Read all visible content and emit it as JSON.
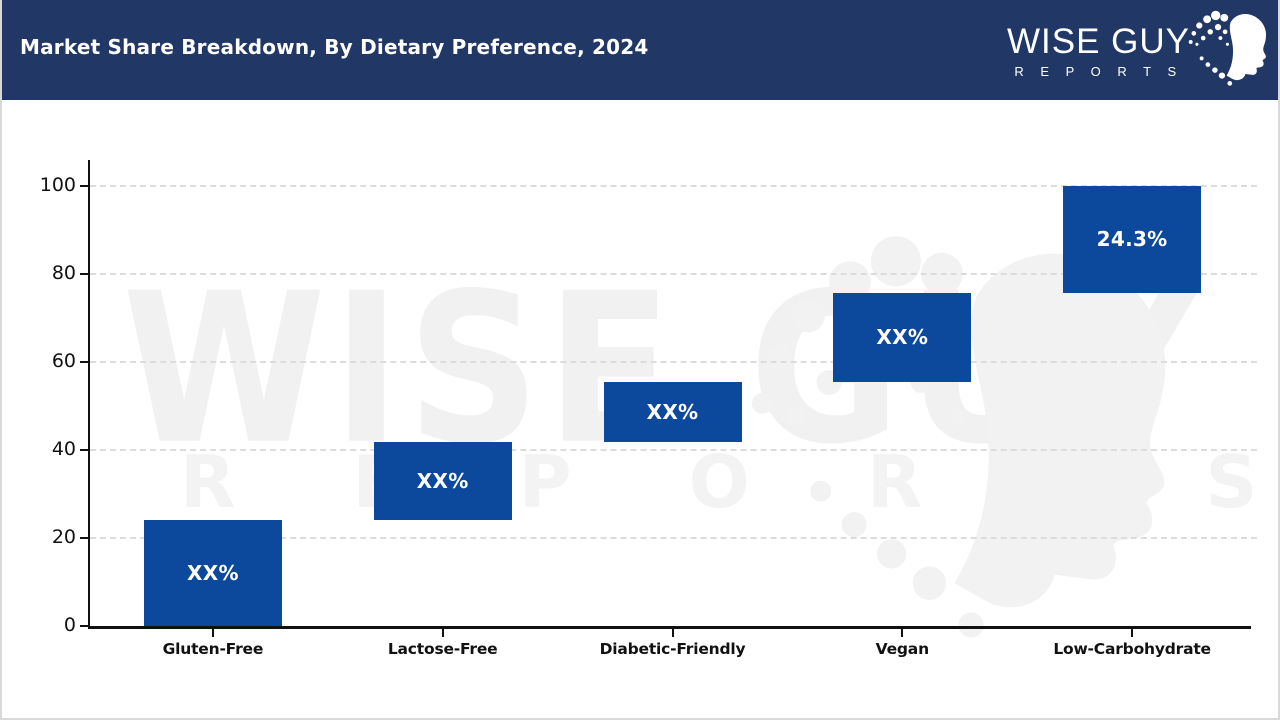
{
  "header": {
    "title": "Market Share Breakdown, By Dietary Preference, 2024",
    "bg_color": "#213866",
    "logo": {
      "line1": "WISE GUY",
      "line2": "R E P O R T S"
    }
  },
  "watermark": {
    "line1": "WISE GUY",
    "line2": "R E P O R T S"
  },
  "chart_data": {
    "type": "bar",
    "subtype": "waterfall",
    "title": "Market Share Breakdown, By Dietary Preference, 2024",
    "xlabel": "",
    "ylabel": "",
    "ylim": [
      0,
      100
    ],
    "yticks": [
      0,
      20,
      40,
      60,
      80,
      100
    ],
    "grid": "horizontal dashed",
    "legend": "none",
    "bar_color": "#0c489c",
    "bar_label_color": "#ffffff",
    "axis_color": "#111111",
    "grid_color": "#dcdcdc",
    "categories": [
      "Gluten-Free",
      "Lactose-Free",
      "Diabetic-Friendly",
      "Vegan",
      "Low-Carbohydrate"
    ],
    "segments": [
      {
        "category": "Gluten-Free",
        "start": 0,
        "end": 24.2,
        "label": "XX%"
      },
      {
        "category": "Lactose-Free",
        "start": 24.2,
        "end": 41.8,
        "label": "XX%"
      },
      {
        "category": "Diabetic-Friendly",
        "start": 41.8,
        "end": 55.5,
        "label": "XX%"
      },
      {
        "category": "Vegan",
        "start": 55.5,
        "end": 75.7,
        "label": "XX%"
      },
      {
        "category": "Low-Carbohydrate",
        "start": 75.7,
        "end": 100,
        "label": "24.3%"
      }
    ]
  }
}
